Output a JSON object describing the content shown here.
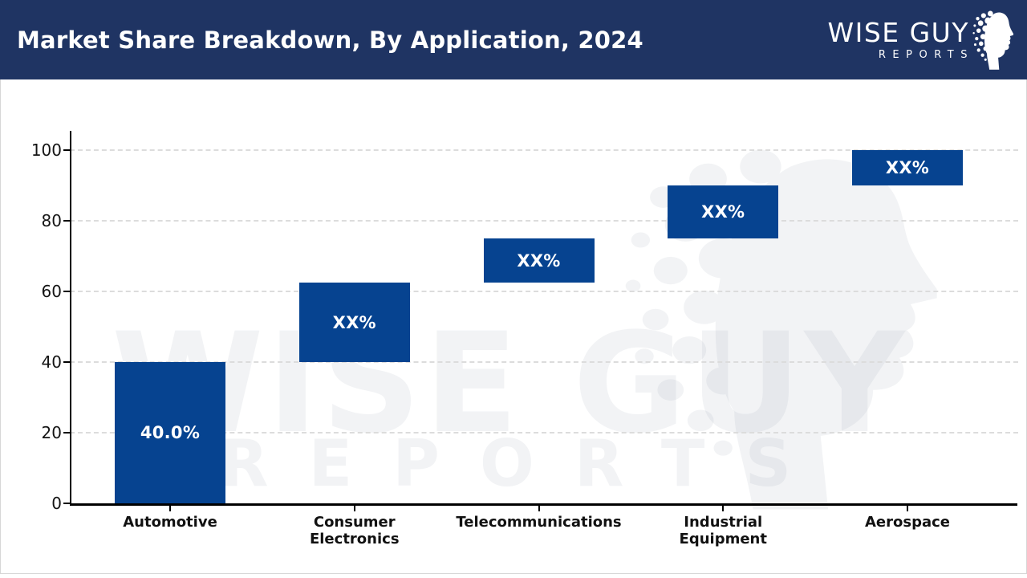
{
  "header": {
    "title": "Market Share Breakdown, By Application, 2024",
    "logo": {
      "line1": "WISE GUY",
      "line2": "REPORTS"
    }
  },
  "watermark": {
    "line1": "WISE GUY",
    "line2": "REPORTS"
  },
  "colors": {
    "header_bg": "#1f3463",
    "bar": "#064390",
    "grid": "#dcdcdc",
    "axis": "#000000",
    "bar_label": "#ffffff"
  },
  "chart_data": {
    "type": "bar",
    "subtype": "waterfall-floating-bars",
    "title": "Market Share Breakdown, By Application, 2024",
    "xlabel": "",
    "ylabel": "",
    "ylim": [
      0,
      100
    ],
    "yticks": [
      0,
      20,
      40,
      60,
      80,
      100
    ],
    "grid": "horizontal-dashed",
    "legend": "none",
    "bars": [
      {
        "category": "Automotive",
        "category_lines": [
          "Automotive"
        ],
        "start": 0,
        "end": 40,
        "segment_size": 40,
        "label": "40.0%"
      },
      {
        "category": "Consumer Electronics",
        "category_lines": [
          "Consumer",
          "Electronics"
        ],
        "start": 40,
        "end": 62.5,
        "segment_size": 22.5,
        "label": "XX%"
      },
      {
        "category": "Telecommunications",
        "category_lines": [
          "Telecommunications"
        ],
        "start": 62.5,
        "end": 75,
        "segment_size": 12.5,
        "label": "XX%"
      },
      {
        "category": "Industrial Equipment",
        "category_lines": [
          "Industrial",
          "Equipment"
        ],
        "start": 75,
        "end": 90,
        "segment_size": 15,
        "label": "XX%"
      },
      {
        "category": "Aerospace",
        "category_lines": [
          "Aerospace"
        ],
        "start": 90,
        "end": 100,
        "segment_size": 10,
        "label": "XX%"
      }
    ]
  }
}
